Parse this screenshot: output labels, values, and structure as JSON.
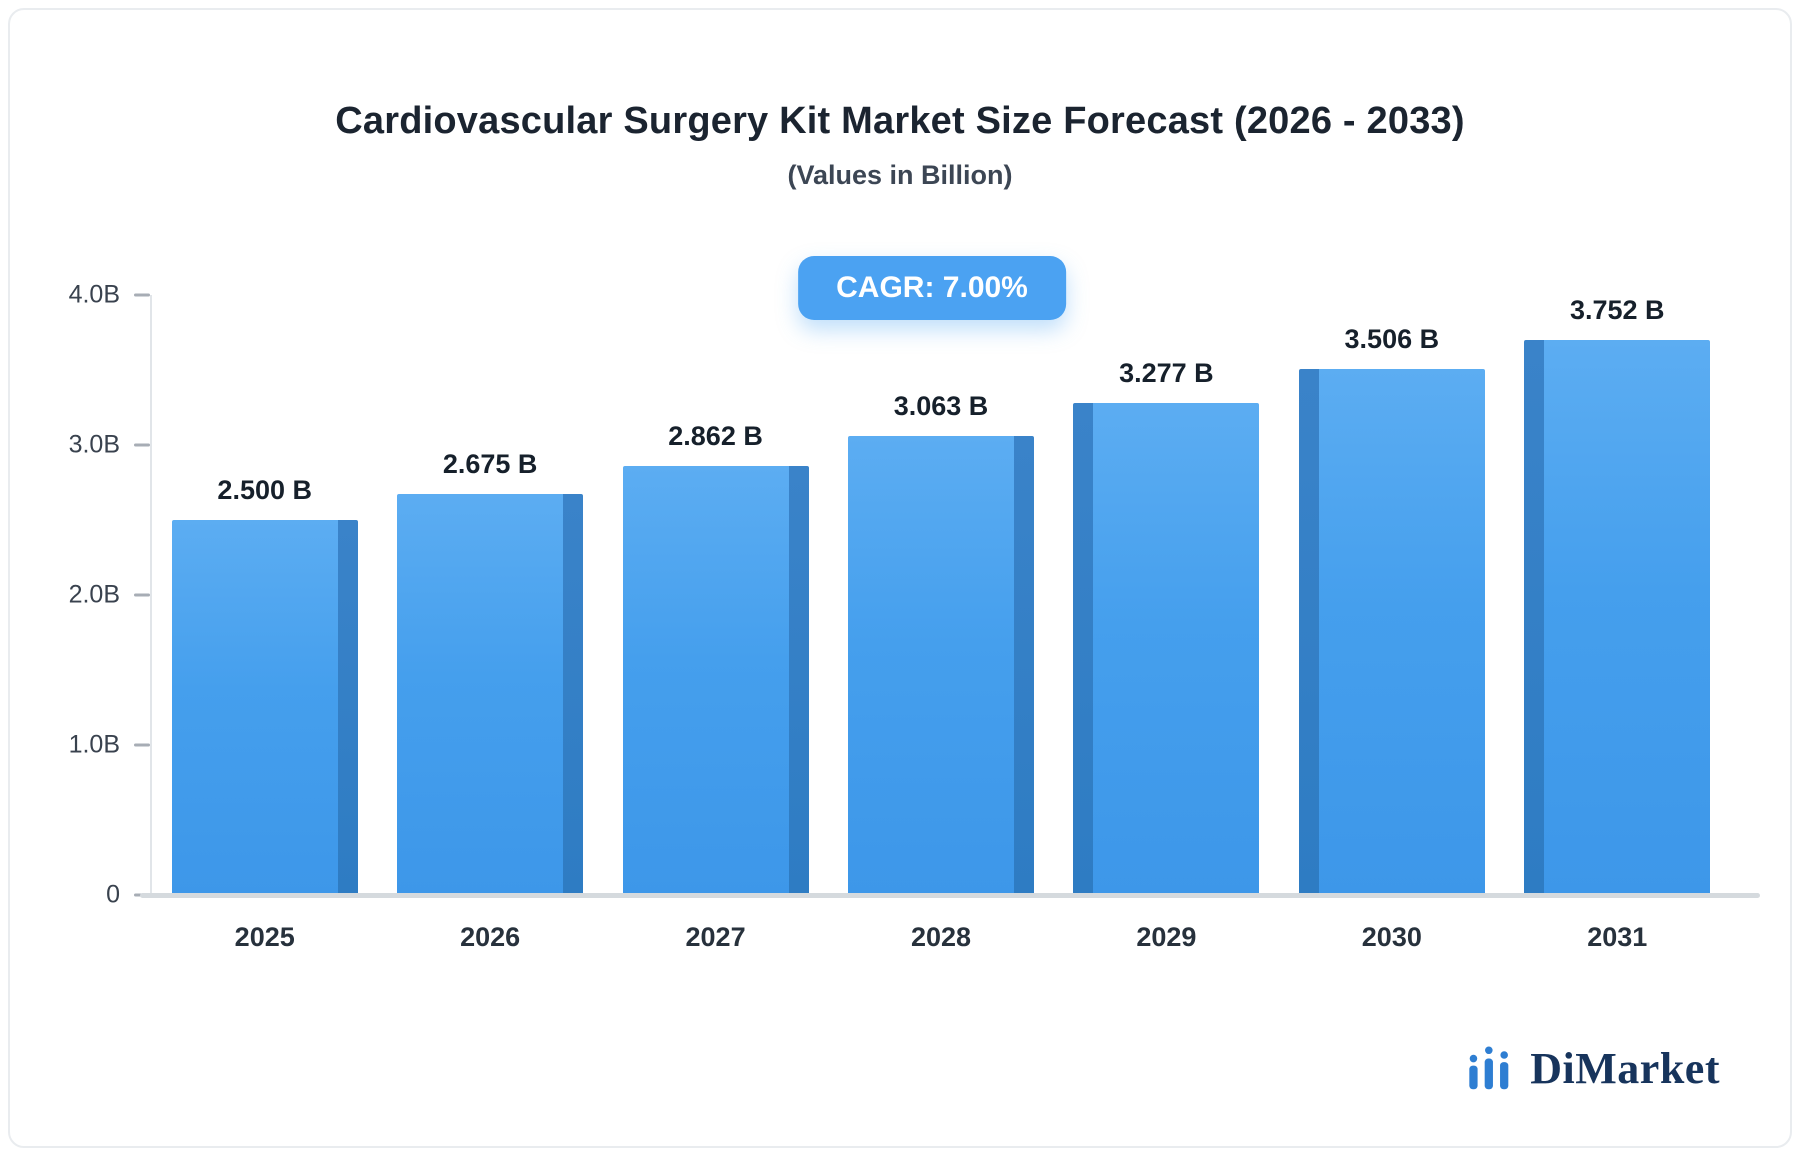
{
  "chart_data": {
    "type": "bar",
    "title": "Cardiovascular Surgery Kit Market Size Forecast (2026 - 2033)",
    "subtitle": "(Values in Billion)",
    "cagr_label": "CAGR: 7.00%",
    "categories": [
      "2025",
      "2026",
      "2027",
      "2028",
      "2029",
      "2030",
      "2031"
    ],
    "values": [
      2.5,
      2.675,
      2.862,
      3.063,
      3.277,
      3.506,
      3.752
    ],
    "value_labels": [
      "2.500 B",
      "2.675 B",
      "2.862 B",
      "3.063 B",
      "3.277 B",
      "3.506 B",
      "3.752 B"
    ],
    "xlabel": "",
    "ylabel": "",
    "ylim": [
      0,
      4.0
    ],
    "y_ticks": [
      {
        "value": 0,
        "label": "0"
      },
      {
        "value": 1,
        "label": "1.0B"
      },
      {
        "value": 2,
        "label": "2.0B"
      },
      {
        "value": 3,
        "label": "3.0B"
      },
      {
        "value": 4,
        "label": "4.0B"
      }
    ],
    "grid": "off",
    "legend": "none",
    "bar_color_top": "#5cadf2",
    "bar_color_bottom": "#3d97e9",
    "bar_side_color": "#2e7cc3",
    "badge_color": "#4ba2f2"
  },
  "footer": {
    "logo_text": "DiMarket"
  }
}
